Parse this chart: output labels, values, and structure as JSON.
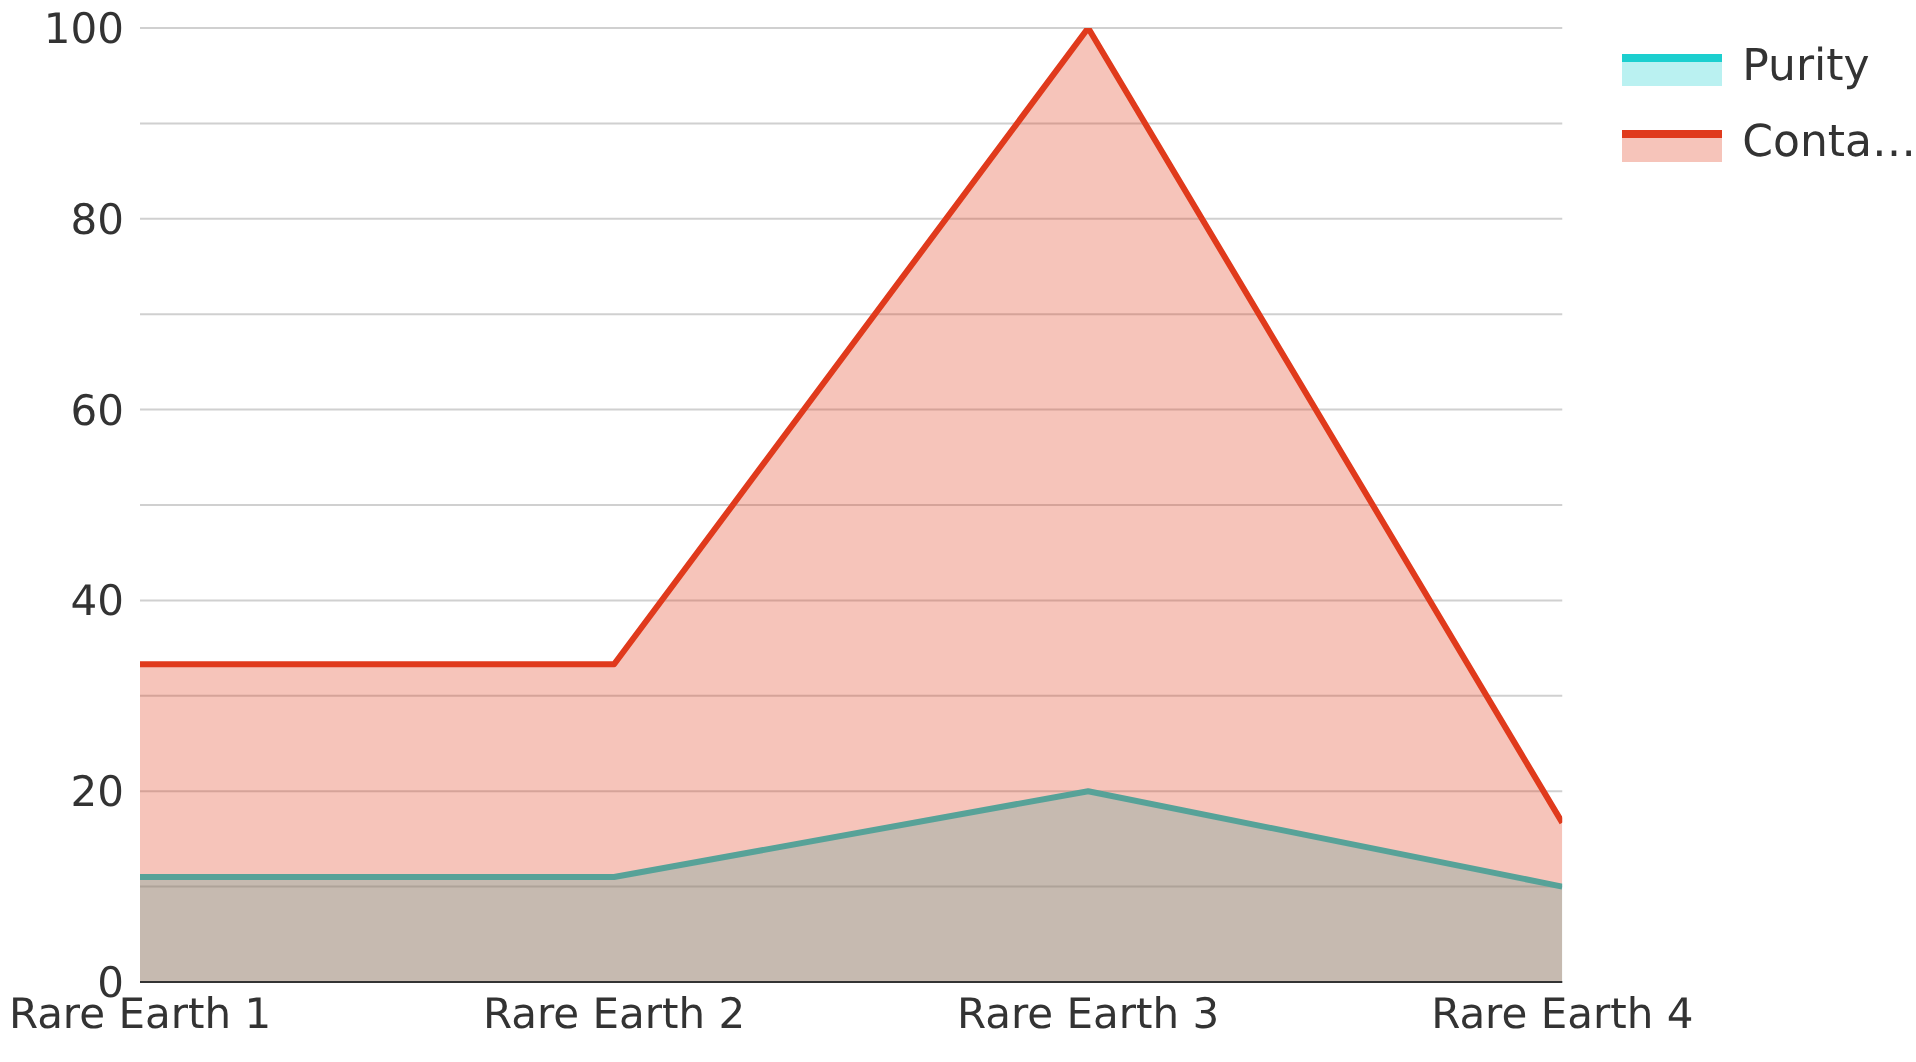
{
  "chart_data": {
    "type": "area",
    "categories": [
      "Rare Earth 1",
      "Rare Earth 2",
      "Rare Earth 3",
      "Rare Earth 4"
    ],
    "series": [
      {
        "name": "Purity",
        "color": "#1ccfcf",
        "values": [
          11,
          11,
          20,
          10
        ]
      },
      {
        "name": "Conta…",
        "color": "#e03a1c",
        "values": [
          33.3,
          33.3,
          100,
          16.7
        ]
      }
    ],
    "ylim": [
      0,
      100
    ],
    "yticks": [
      0,
      {
        "value": 10,
        "label": null
      },
      20,
      {
        "value": 30,
        "label": null
      },
      40,
      {
        "value": 50,
        "label": null
      },
      60,
      {
        "value": 70,
        "label": null
      },
      80,
      {
        "value": 90,
        "label": null
      },
      100
    ],
    "grid": "y",
    "legend": "top right"
  }
}
